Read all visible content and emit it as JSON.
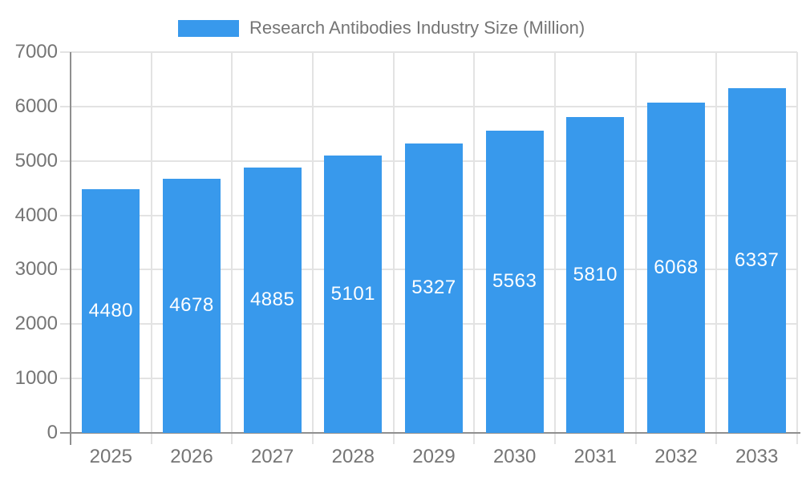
{
  "chart_data": {
    "type": "bar",
    "title": "Research Antibodies Industry Size (Million)",
    "legend_label": "Research Antibodies Industry Size (Million)",
    "legend_position": "top",
    "categories": [
      "2025",
      "2026",
      "2027",
      "2028",
      "2029",
      "2030",
      "2031",
      "2032",
      "2033"
    ],
    "series": [
      {
        "name": "Research Antibodies Industry Size (Million)",
        "values": [
          4480,
          4678,
          4885,
          5101,
          5327,
          5563,
          5810,
          6068,
          6337
        ]
      }
    ],
    "bar_labels_shown": true,
    "xlabel": "",
    "ylabel": "",
    "ylim": [
      0,
      7000
    ],
    "yticks": [
      0,
      1000,
      2000,
      3000,
      4000,
      5000,
      6000,
      7000
    ],
    "grid": "both"
  },
  "colors": {
    "bar": "#3899EC",
    "bar_label_text": "#FFFFFF",
    "axis_text": "#757575",
    "legend_text": "#757575",
    "gridline": "#E3E3E3",
    "axis_line": "#8F8F8F",
    "background": "#FFFFFF"
  }
}
